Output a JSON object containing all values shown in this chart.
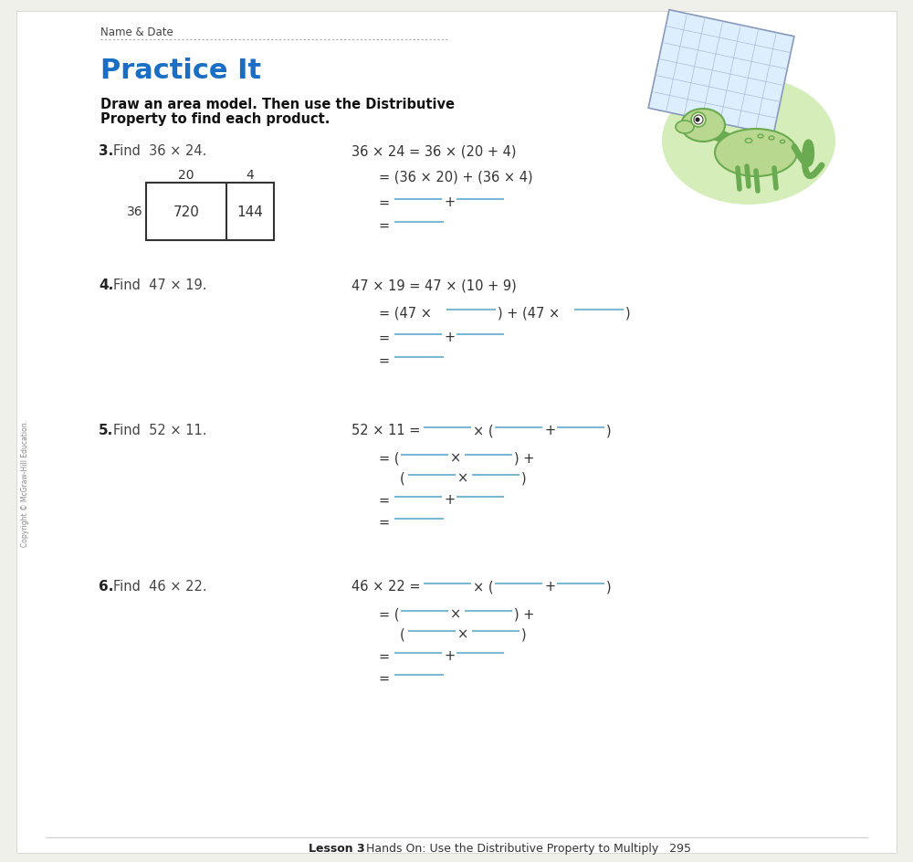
{
  "bg_color": "#f0f0eb",
  "page_bg": "#ffffff",
  "title": "Practice It",
  "title_color": "#1a6fc4",
  "name_date_label": "Name & Date",
  "instruction_line1": "Draw an area model. Then use the Distributive",
  "instruction_line2": "Property to find each product.",
  "line_color": "#7bb8d4",
  "text_color": "#333333",
  "footer_bold": "Lesson 3",
  "footer_normal": "  Hands On: Use the Distributive Property to Multiply   295",
  "copyright": "Copyright © McGraw-Hill Education."
}
